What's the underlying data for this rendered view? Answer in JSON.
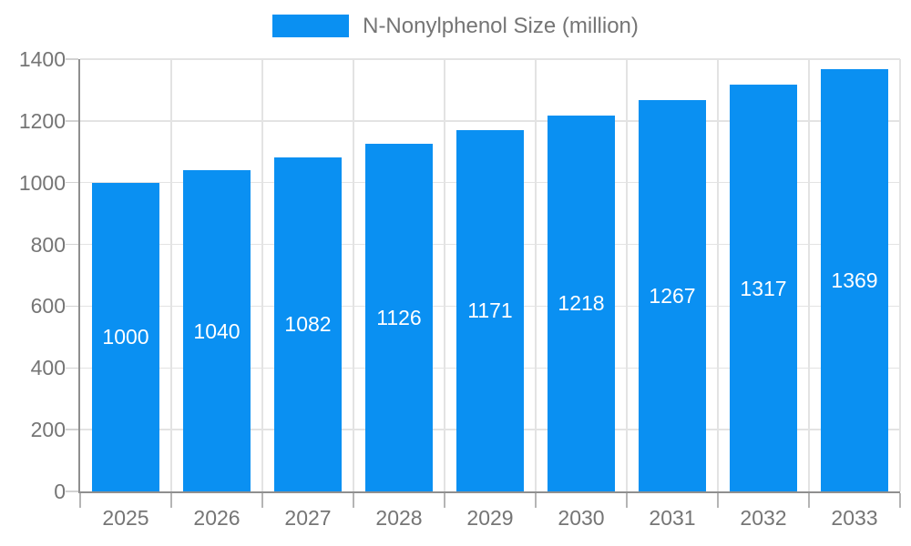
{
  "chart_data": {
    "type": "bar",
    "legend": "N-Nonylphenol Size (million)",
    "legend_position": "top",
    "categories": [
      "2025",
      "2026",
      "2027",
      "2028",
      "2029",
      "2030",
      "2031",
      "2032",
      "2033"
    ],
    "values": [
      1000,
      1040,
      1082,
      1126,
      1171,
      1218,
      1267,
      1317,
      1369
    ],
    "ylim": [
      0,
      1400
    ],
    "yticks": [
      0,
      200,
      400,
      600,
      800,
      1000,
      1200,
      1400
    ],
    "grid": true,
    "value_labels": "inside-middle",
    "colors": {
      "bar": "#0a90f2",
      "axis": "#8f8f8f",
      "grid": "#e3e3e3",
      "tick": "#d2d2d2",
      "tick_x": "#b5b5b5",
      "label": "#757575",
      "value_text": "#ffffff"
    }
  }
}
